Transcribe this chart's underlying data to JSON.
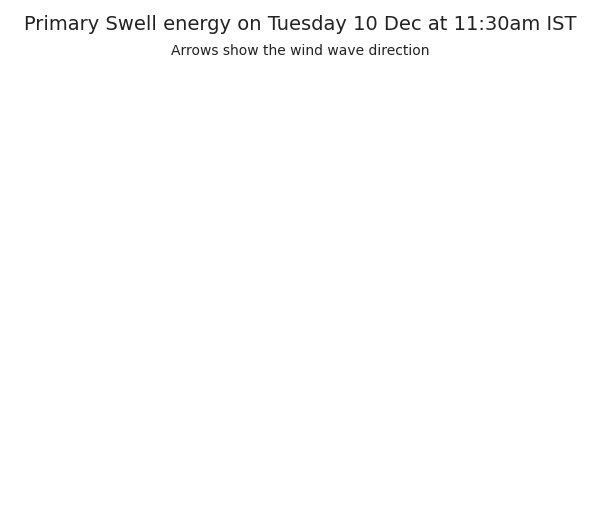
{
  "title": "Primary Swell energy on Tuesday 10 Dec at 11:30am IST",
  "subtitle": "Arrows show the wind wave direction",
  "title_fontsize": 14,
  "subtitle_fontsize": 10,
  "title_color": "#222222",
  "background_color": "#ffffff",
  "map_extent": [
    65,
    100,
    5,
    38
  ],
  "land_color": "#aaaaaa",
  "ocean_color": "#ffffff",
  "border_color": "#000000",
  "border_linewidth": 0.8,
  "figsize": [
    6.01,
    5.12
  ],
  "dpi": 100
}
